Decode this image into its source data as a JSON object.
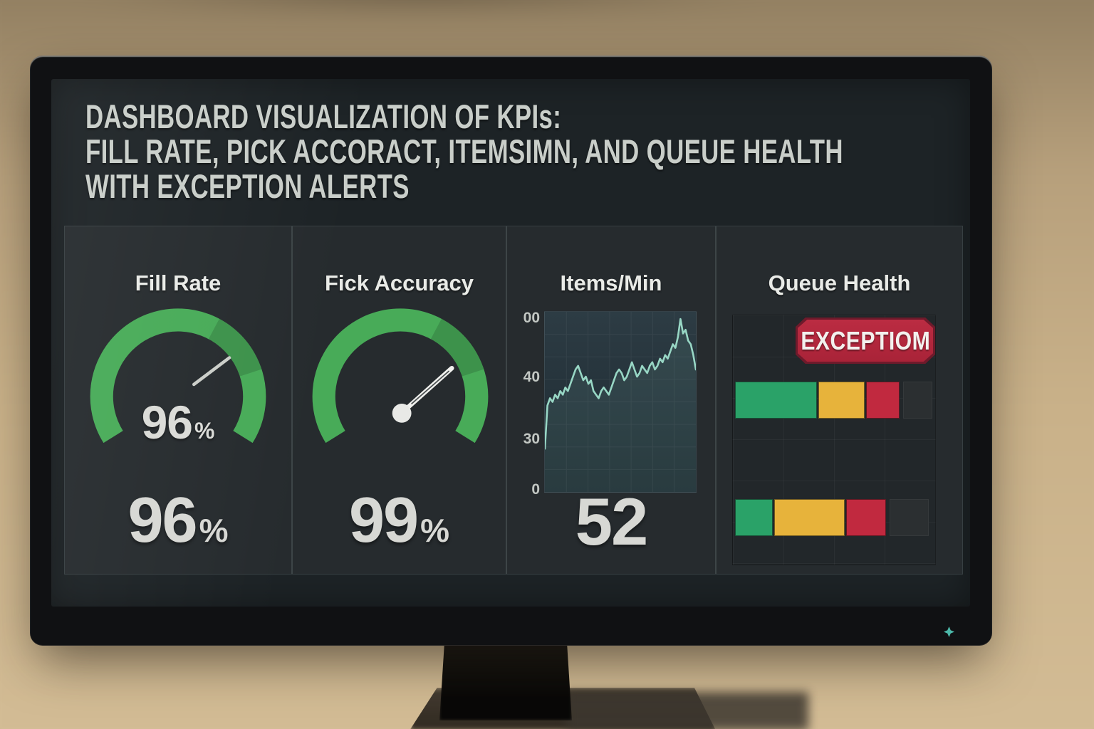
{
  "screen": {
    "heading_lines": [
      "DASHBOARD VISUALIZATION OF KPIs:",
      "FILL RATE, PICK ACCORACT, ITEMSIMN, AND QUEUE HEALTH",
      "WITH EXCEPTION ALERTS"
    ]
  },
  "panels": {
    "fill_rate": {
      "title": "Fill Rate",
      "gauge_value": "96",
      "gauge_unit": "%",
      "value": "96",
      "unit": "%"
    },
    "pick_accuracy": {
      "title": "Fick Accuracy",
      "value": "99",
      "unit": "%"
    },
    "items_per_min": {
      "title": "Items/Min",
      "value": "52",
      "y_ticks": [
        "00",
        "40",
        "30",
        "0"
      ]
    },
    "queue_health": {
      "title": "Queue Health",
      "alert_label": "EXCEPTIOM"
    }
  },
  "colors": {
    "gauge_green": "#48ab58",
    "gauge_green_shade": "rgba(0,0,0,0.14)",
    "needle": "#cbcec9",
    "hub": "#e8e9e6",
    "line_teal": "#98d7c5",
    "line_area": "rgba(152,215,197,0.10)",
    "grid": "rgba(255,255,255,0.055)",
    "bar_ok": "#2aa268",
    "bar_warn": "#e7b33b",
    "bar_error": "#c1293f",
    "bar_empty": "#2b2f31",
    "badge_red": "#b5293f",
    "brand_teal": "#57d7c6"
  },
  "chart_data": [
    {
      "type": "gauge",
      "title": "Fill Rate",
      "value": 96,
      "unit": "%",
      "min": 0,
      "max": 100,
      "center_label": "96%",
      "needle_angle_deg": 37,
      "show_hub": false
    },
    {
      "type": "gauge",
      "title": "Fick Accuracy",
      "value": 99,
      "unit": "%",
      "min": 0,
      "max": 100,
      "needle_angle_deg": 42,
      "show_hub": true
    },
    {
      "type": "line",
      "title": "Items/Min",
      "current_value": 52,
      "ylim": [
        0,
        50
      ],
      "y_tick_labels": [
        "00",
        "40",
        "30",
        "0"
      ],
      "grid": true,
      "legend": "none",
      "values": [
        12,
        24,
        26,
        25,
        27,
        26,
        28,
        27,
        29,
        28,
        30,
        32,
        34,
        35,
        33,
        31,
        32,
        30,
        31,
        28,
        27,
        26,
        28,
        29,
        28,
        27,
        29,
        31,
        33,
        34,
        33,
        31,
        32,
        34,
        36,
        34,
        32,
        33,
        35,
        34,
        33,
        35,
        36,
        34,
        35,
        37,
        36,
        38,
        37,
        39,
        41,
        40,
        43,
        48,
        44,
        45,
        42,
        41,
        38,
        34
      ]
    },
    {
      "type": "bar",
      "subtype": "stacked-horizontal",
      "title": "Queue Health",
      "alert": "EXCEPTIOM",
      "rows": [
        {
          "name": "queue-row-1",
          "segments": [
            {
              "status": "ok",
              "pct": 42
            },
            {
              "status": "warn",
              "pct": 24
            },
            {
              "status": "error",
              "pct": 17
            },
            {
              "status": "empty",
              "pct": 15
            }
          ]
        },
        {
          "name": "queue-row-2",
          "segments": [
            {
              "status": "ok",
              "pct": 19
            },
            {
              "status": "warn",
              "pct": 36
            },
            {
              "status": "error",
              "pct": 20
            },
            {
              "status": "empty",
              "pct": 20
            }
          ]
        }
      ]
    }
  ]
}
